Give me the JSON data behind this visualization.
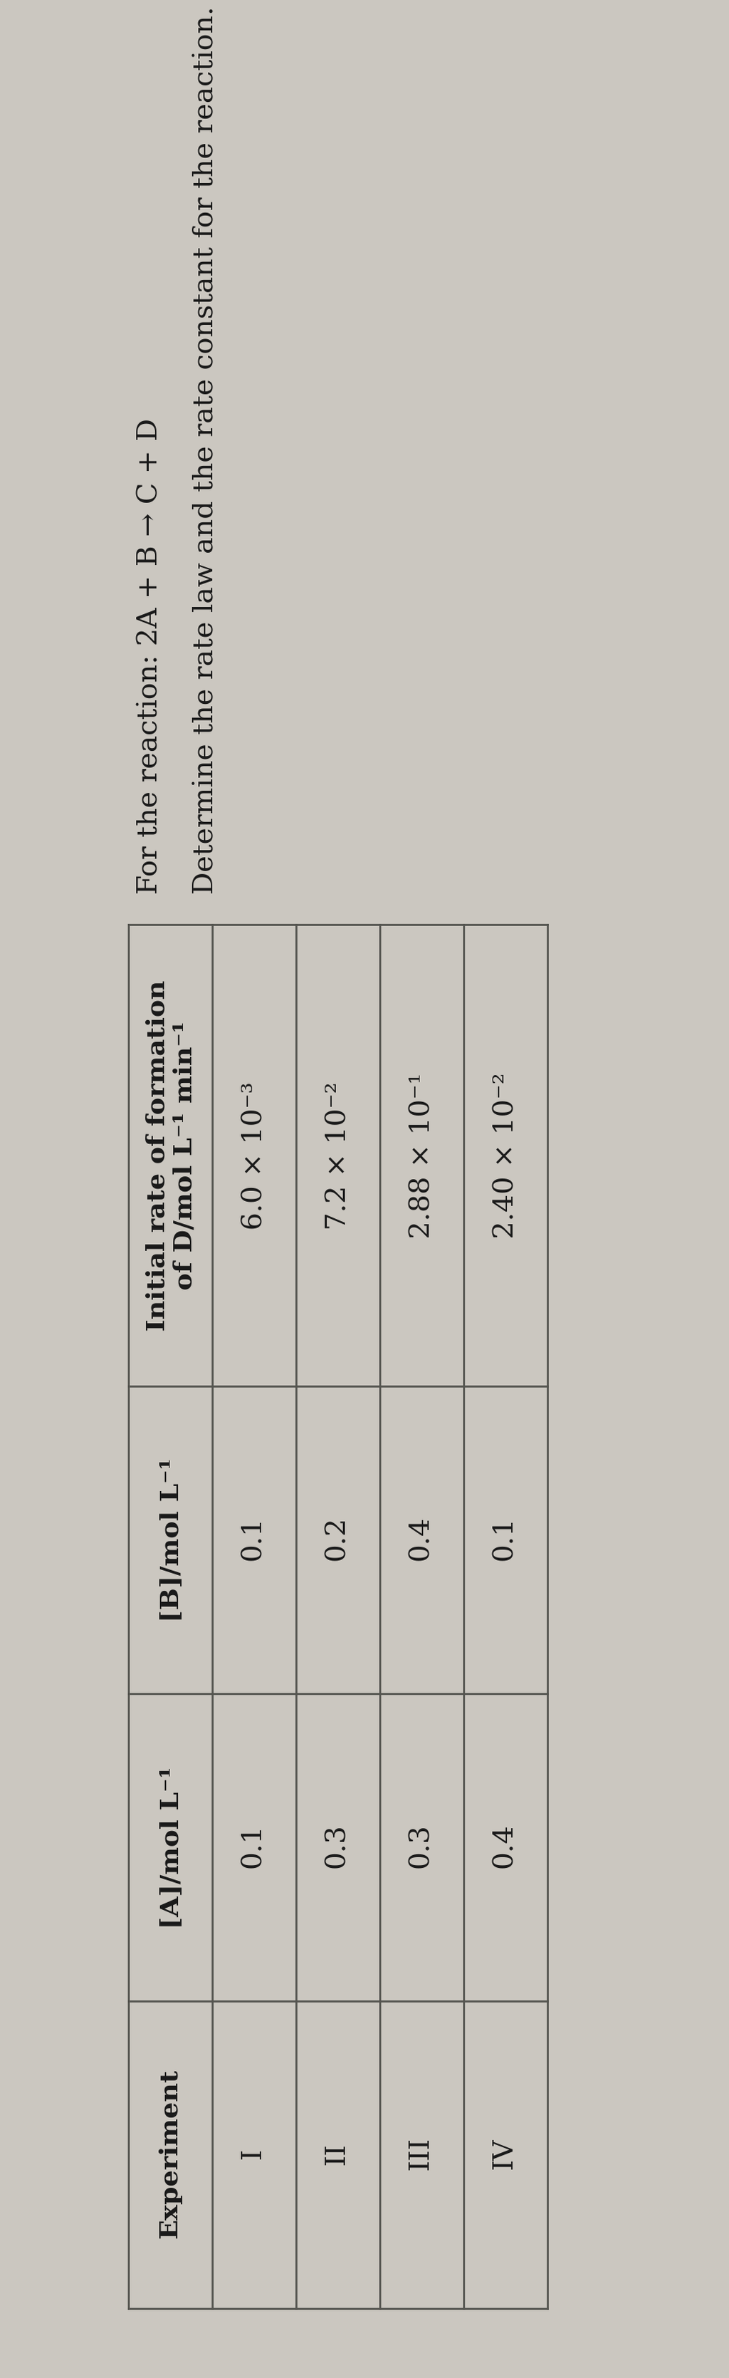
{
  "title_line1": "For the reaction: 2A + B → C + D",
  "title_line2": "Determine the rate law and the rate constant for the reaction.",
  "col_headers": [
    "Experiment",
    "[A]/mol L⁻¹",
    "[B]/mol L⁻¹",
    "Initial rate of formation\nof D/mol L⁻¹ min⁻¹"
  ],
  "rows": [
    [
      "I",
      "0.1",
      "0.1",
      "6.0 × 10⁻³"
    ],
    [
      "II",
      "0.3",
      "0.2",
      "7.2 × 10⁻²"
    ],
    [
      "III",
      "0.3",
      "0.4",
      "2.88 × 10⁻¹"
    ],
    [
      "IV",
      "0.4",
      "0.1",
      "2.40 × 10⁻²"
    ]
  ],
  "bg_color": "#cbc7c0",
  "text_color": "#1a1a1a",
  "table_line_color": "#555550",
  "title_fontsize": 28,
  "header_fontsize": 26,
  "cell_fontsize": 28
}
